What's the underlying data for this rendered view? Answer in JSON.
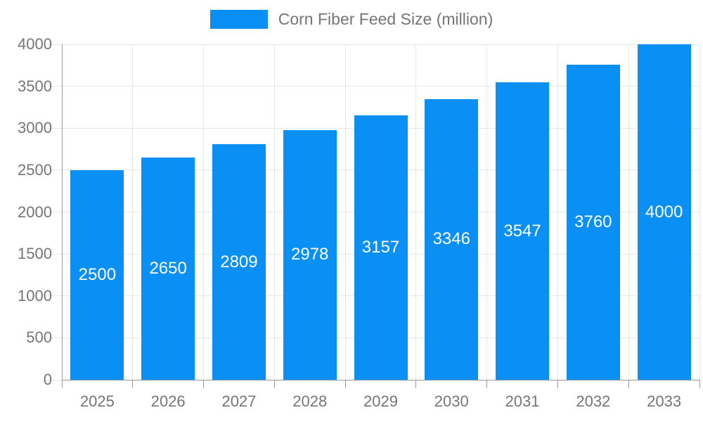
{
  "legend": {
    "label": "Corn Fiber Feed Size (million)"
  },
  "chart_data": {
    "type": "bar",
    "title": "",
    "series_name": "Corn Fiber Feed Size (million)",
    "categories": [
      "2025",
      "2026",
      "2027",
      "2028",
      "2029",
      "2030",
      "2031",
      "2032",
      "2033"
    ],
    "values": [
      2500,
      2650,
      2809,
      2978,
      3157,
      3346,
      3547,
      3760,
      4000
    ],
    "xlabel": "",
    "ylabel": "",
    "ylim": [
      0,
      4000
    ],
    "yticks": [
      0,
      500,
      1000,
      1500,
      2000,
      2500,
      3000,
      3500,
      4000
    ],
    "grid": true,
    "legend_position": "top-center",
    "value_labels": "inside-center",
    "colors": {
      "bar": "#0a90f5",
      "grid": "#e6e6e6",
      "axis": "#999999",
      "text": "#757575",
      "value_text": "#ffffff",
      "background": "#ffffff"
    }
  }
}
